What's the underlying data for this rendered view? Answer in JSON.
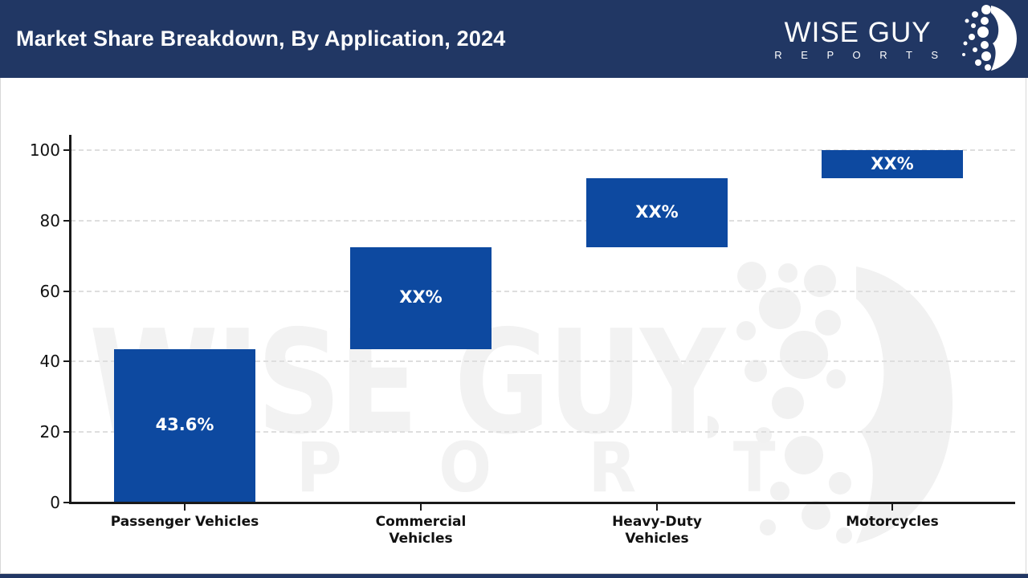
{
  "header": {
    "title": "Market Share Breakdown, By Application, 2024",
    "logo": {
      "line1": "WISE GUY",
      "line2": "R E P O R T S"
    }
  },
  "watermark": {
    "line1": "WISE GUY",
    "line2": "P O R T S"
  },
  "colors": {
    "header_bg": "#213764",
    "bar": "#0d49a0",
    "bar_label": "#ffffff",
    "gridline": "#dedede",
    "axis": "#1a1a1a",
    "watermark": "#f2f2f2",
    "footer_bar": "#213764"
  },
  "chart_data": {
    "type": "bar",
    "subtype": "waterfall",
    "title": "Market Share Breakdown, By Application, 2024",
    "categories": [
      "Passenger Vehicles",
      "Commercial Vehicles",
      "Heavy-Duty Vehicles",
      "Motorcycles"
    ],
    "category_lines": [
      [
        "Passenger Vehicles"
      ],
      [
        "Commercial",
        "Vehicles"
      ],
      [
        "Heavy-Duty",
        "Vehicles"
      ],
      [
        "Motorcycles"
      ]
    ],
    "segments": [
      {
        "category": "Passenger Vehicles",
        "start": 0,
        "end": 43.6,
        "label": "43.6%"
      },
      {
        "category": "Commercial Vehicles",
        "start": 43.6,
        "end": 72.4,
        "label": "XX%"
      },
      {
        "category": "Heavy-Duty Vehicles",
        "start": 72.4,
        "end": 92,
        "label": "XX%"
      },
      {
        "category": "Motorcycles",
        "start": 92,
        "end": 100,
        "label": "XX%"
      }
    ],
    "xlabel": "",
    "ylabel": "",
    "ylim": [
      0,
      100
    ],
    "yticks": [
      0,
      20,
      40,
      60,
      80,
      100
    ],
    "grid": "horizontal-dashed",
    "legend": "none",
    "bar_color": "#0d49a0",
    "label_color": "#ffffff"
  }
}
